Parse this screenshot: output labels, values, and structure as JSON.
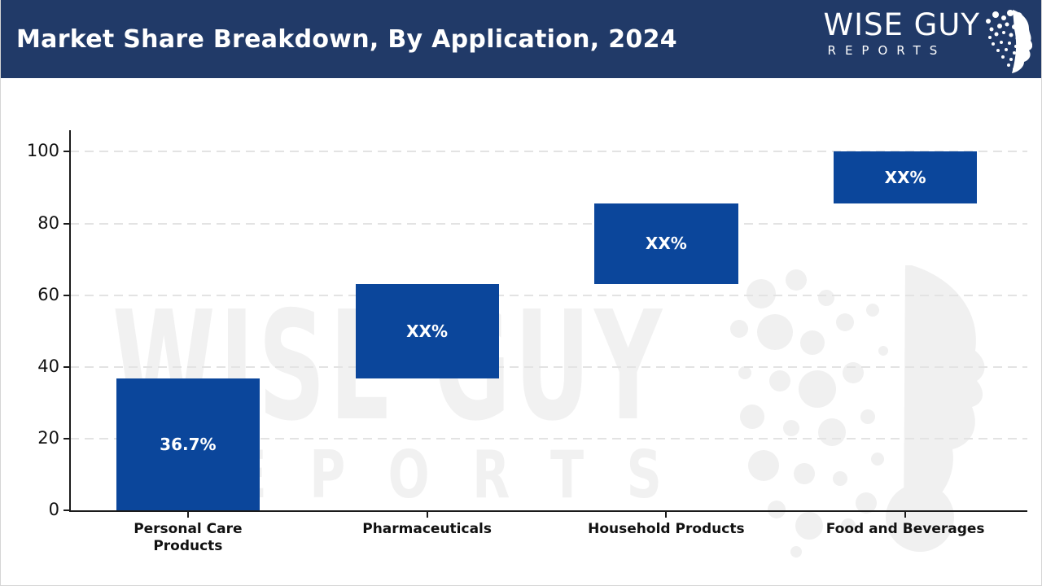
{
  "header": {
    "title": "Market Share Breakdown, By Application, 2024",
    "logo": {
      "line1": "WISE GUY",
      "line2": "REPORTS"
    }
  },
  "watermark": {
    "line1": "WISE GUY",
    "line2": "REPORTS"
  },
  "chart_data": {
    "type": "bar",
    "subtype": "waterfall-floating-bars",
    "title": "Market Share Breakdown, By Application, 2024",
    "xlabel": "",
    "ylabel": "",
    "categories": [
      "Personal Care Products",
      "Pharmaceuticals",
      "Household Products",
      "Food and Beverages"
    ],
    "segments": [
      {
        "category": "Personal Care Products",
        "start": 0,
        "end": 36.7,
        "label": "36.7%"
      },
      {
        "category": "Pharmaceuticals",
        "start": 36.7,
        "end": 63.2,
        "label": "XX%"
      },
      {
        "category": "Household Products",
        "start": 63.2,
        "end": 85.6,
        "label": "XX%"
      },
      {
        "category": "Food and Beverages",
        "start": 85.6,
        "end": 100,
        "label": "XX%"
      }
    ],
    "yticks": [
      0,
      20,
      40,
      60,
      80,
      100
    ],
    "ylim": [
      0,
      106
    ],
    "grid": "horizontal-dashed",
    "legend": "none",
    "colors": {
      "bar": "#0b469b",
      "bar_label": "#ffffff",
      "header_background": "#213a68",
      "axis": "#1b1b1b",
      "gridline": "#e3e3e3",
      "watermark": "#f1f1f1"
    }
  }
}
